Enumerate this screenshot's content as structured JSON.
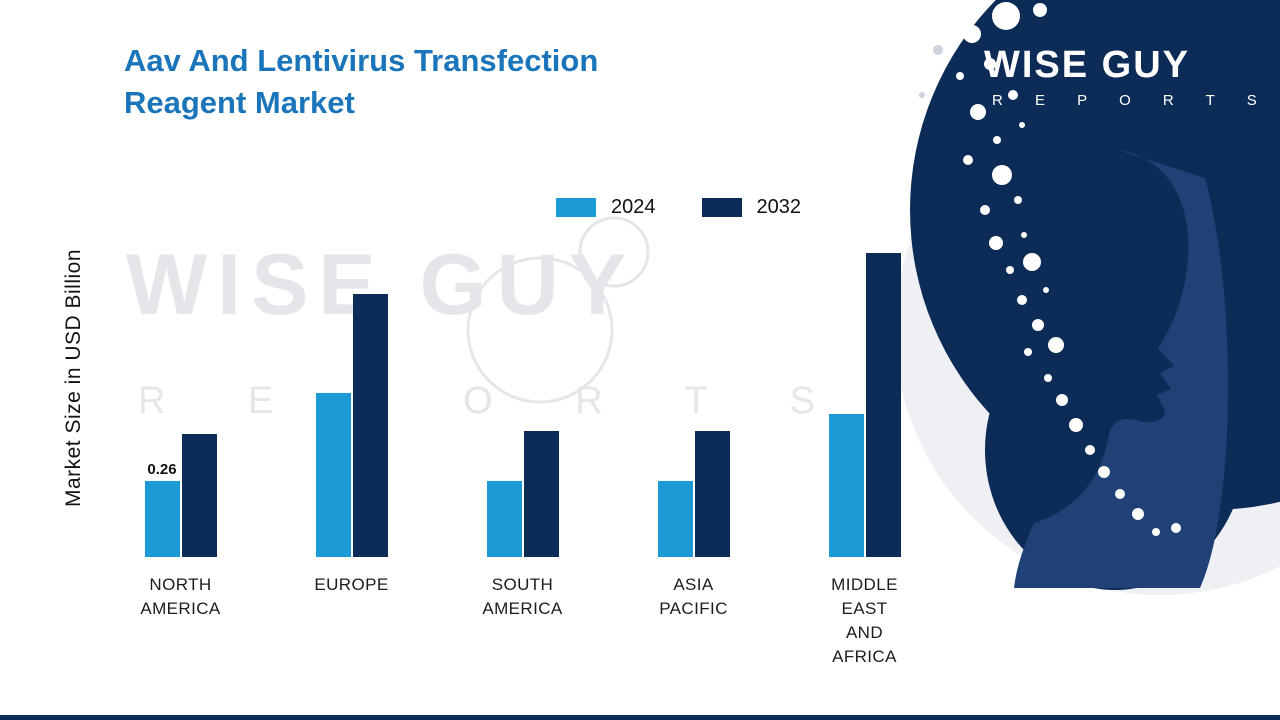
{
  "page": {
    "title_line1": "Aav And Lentivirus Transfection",
    "title_line2": "Reagent Market"
  },
  "logo": {
    "brand": "WISE GUY",
    "sub": "R E P O R T S"
  },
  "watermark": {
    "line1": "WISE GUY",
    "line2": "R E P O R T S"
  },
  "colors": {
    "title_blue": "#1b75bb",
    "bar_2024": "#1b9ad6",
    "bar_2032": "#0d2b57",
    "logo_bg": "#0d2b57",
    "logo_face": "#1f4175",
    "watermark_gray": "#e4e6ea"
  },
  "chart_data": {
    "type": "bar",
    "title": "Aav And Lentivirus Transfection Reagent Market",
    "xlabel": "",
    "ylabel": "Market Size in USD Billion",
    "units": "USD Billion",
    "categories": [
      "NORTH AMERICA",
      "EUROPE",
      "SOUTH AMERICA",
      "ASIA PACIFIC",
      "MIDDLE EAST AND AFRICA"
    ],
    "category_label_lines": [
      [
        "NORTH",
        "AMERICA"
      ],
      [
        "EUROPE"
      ],
      [
        "SOUTH",
        "AMERICA"
      ],
      [
        "ASIA",
        "PACIFIC"
      ],
      [
        "MIDDLE",
        "EAST",
        "AND",
        "AFRICA"
      ]
    ],
    "series": [
      {
        "name": "2024",
        "color": "#1b9ad6",
        "values": [
          0.26,
          0.56,
          0.26,
          0.26,
          0.49
        ]
      },
      {
        "name": "2032",
        "color": "#0d2b57",
        "values": [
          0.42,
          0.9,
          0.43,
          0.43,
          1.04
        ]
      }
    ],
    "value_labels": [
      {
        "series_index": 0,
        "category_index": 0,
        "text": "0.26"
      }
    ],
    "ylim": [
      0,
      1.1
    ],
    "grid": false,
    "legend_position": "top"
  }
}
